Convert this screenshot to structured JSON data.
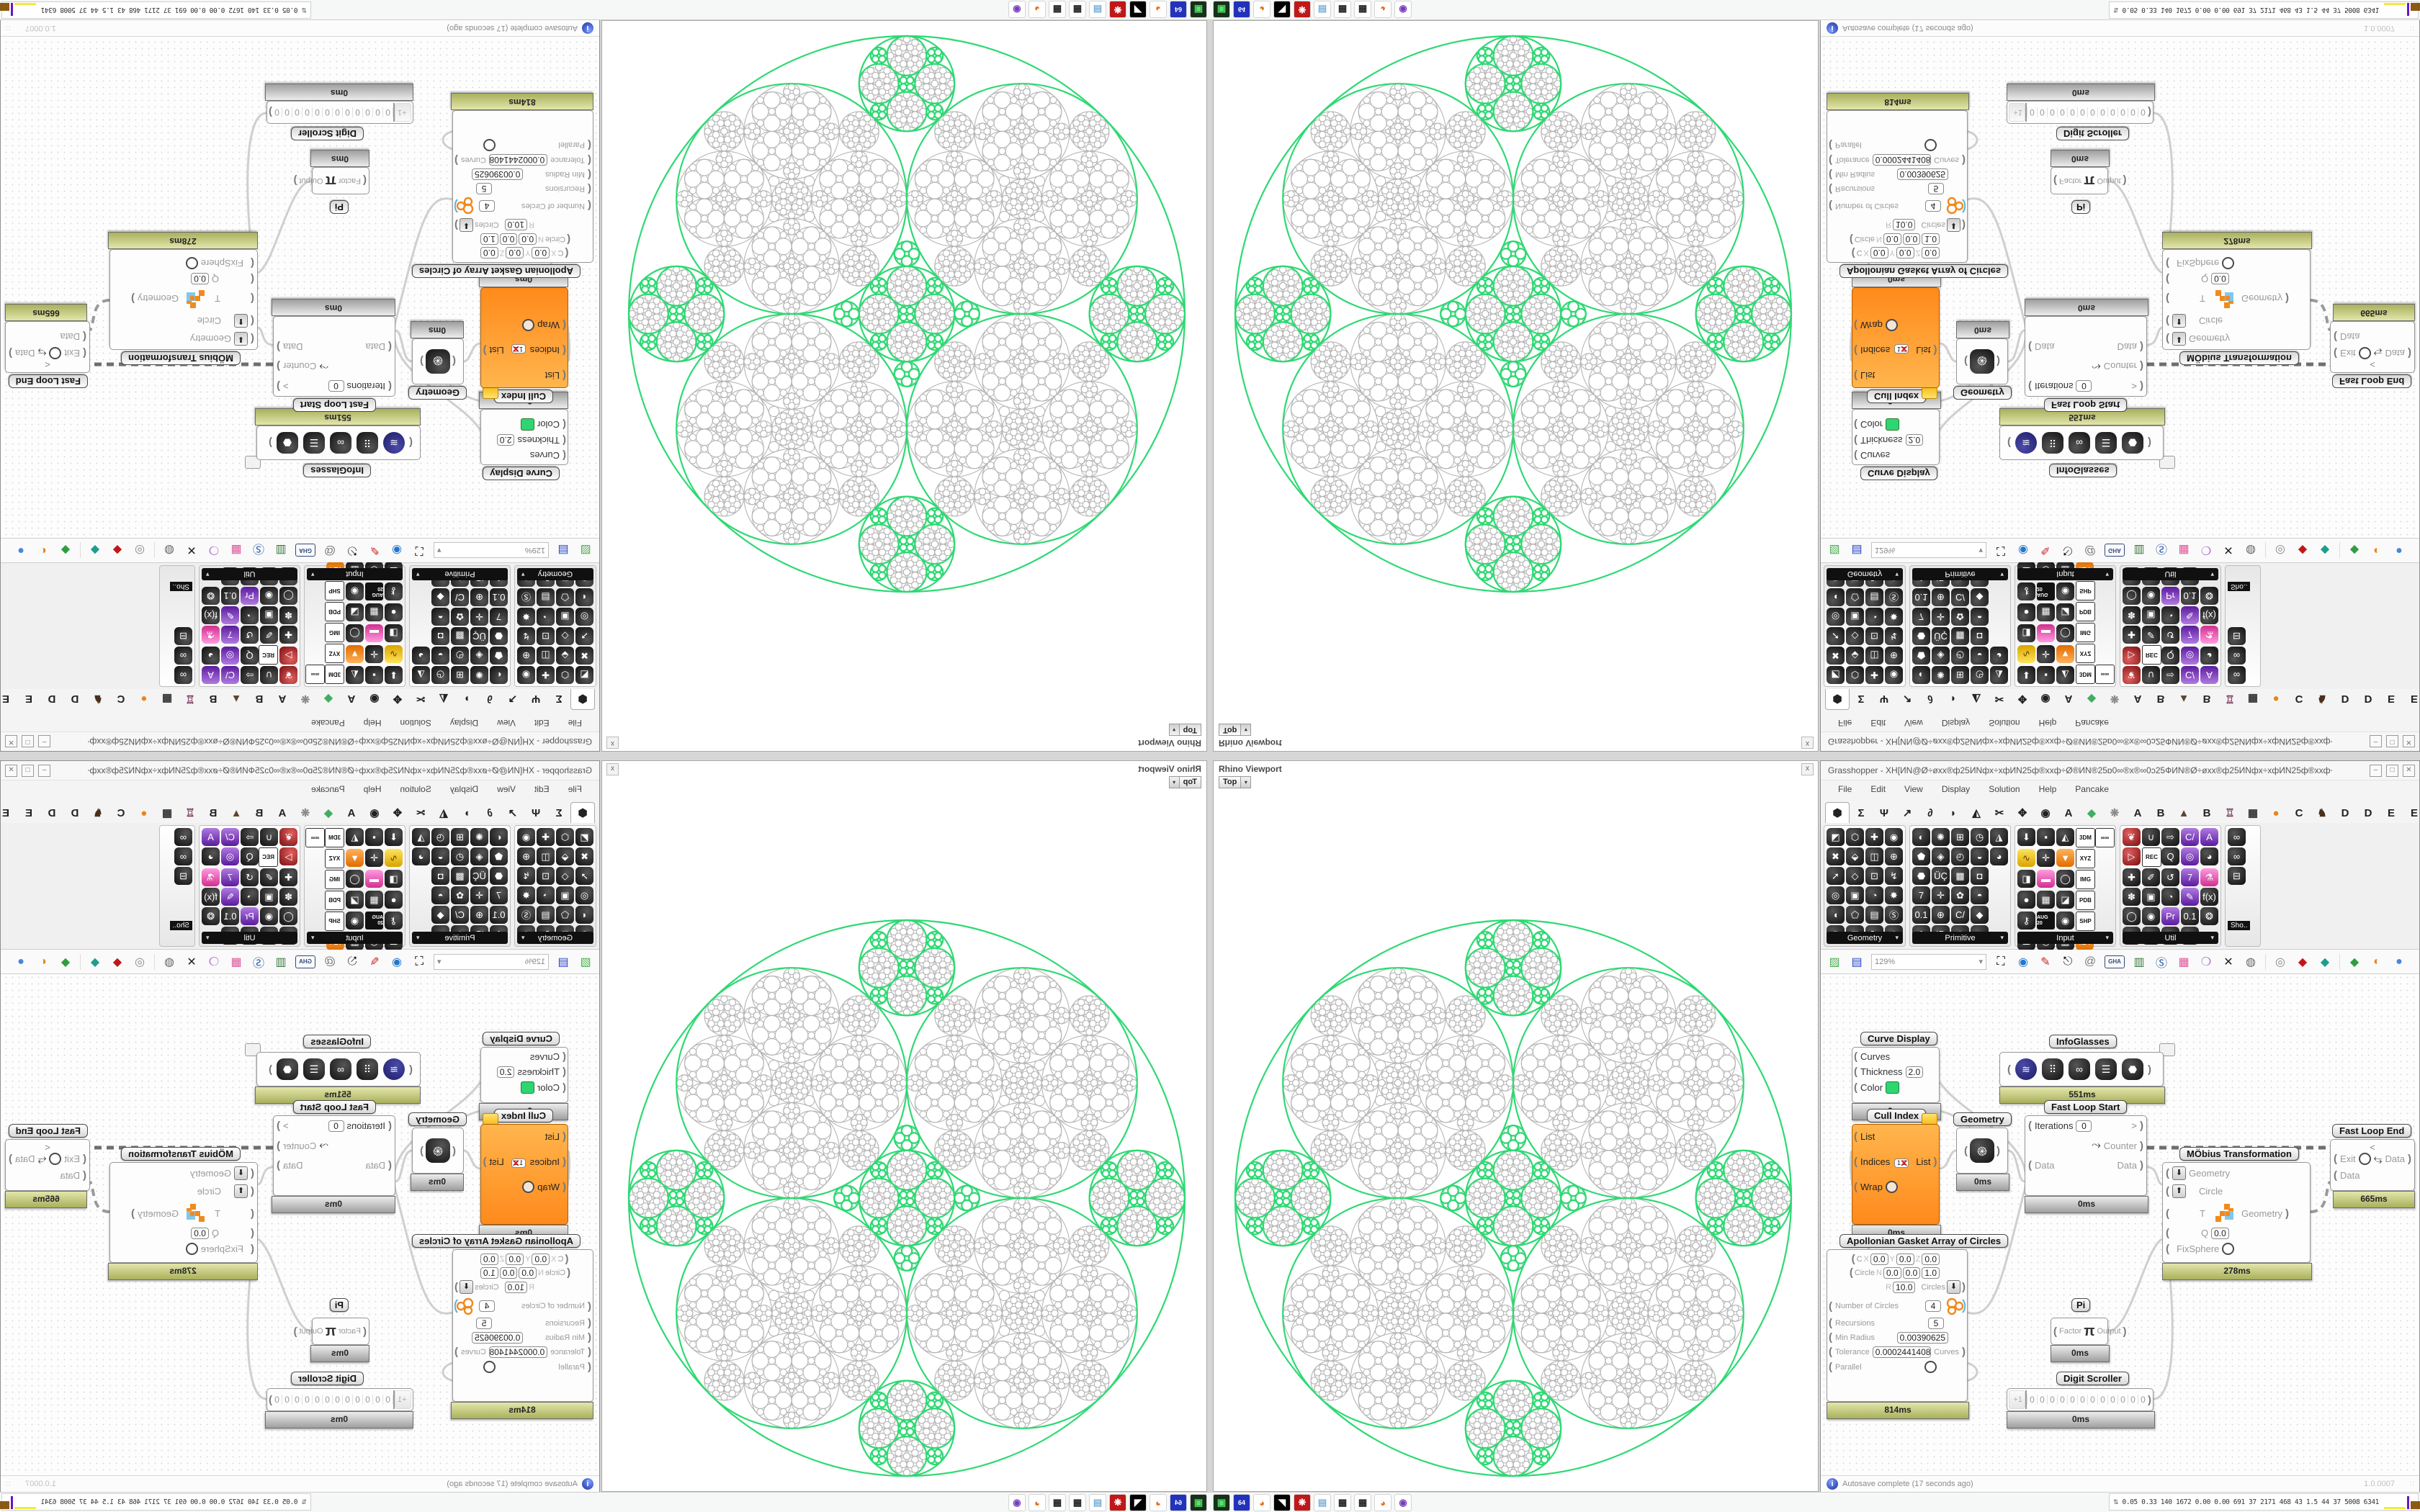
{
  "viewport": {
    "title": "Rhino Viewport",
    "view_label": "Top",
    "dropdown_glyph": "▾",
    "close_label": "x"
  },
  "gasket": {
    "green_color": "#2ed973",
    "gray_color": "#b6b6b6",
    "green_thickness": 2.2,
    "gray_thickness": 1.1,
    "number_of_circles": 4,
    "recursions": 5
  },
  "gh": {
    "window_title": "Grasshopper - XH[ИN@Ø÷øxx®ф25ИNфx÷xфИN25ф®xxф÷Ø®ИN®25ɒ0∞®x®∞0ɔ25ФИN®Ø÷øxx®ф25ИNфx÷xфИN25ф®xxф÷Ø®ИN*",
    "win_min": "–",
    "win_max": "□",
    "win_close": "✕",
    "menu": [
      "File",
      "Edit",
      "View",
      "Display",
      "Solution",
      "Help",
      "Pancake"
    ],
    "tabs_main": [
      {
        "glyph": "⬢",
        "name": "params",
        "selected": true
      },
      {
        "glyph": "Σ",
        "name": "maths"
      },
      {
        "glyph": "Ψ",
        "name": "sets"
      },
      {
        "glyph": "↗",
        "name": "vector"
      },
      {
        "glyph": "∂",
        "name": "curve"
      },
      {
        "glyph": "◗",
        "name": "surface"
      },
      {
        "glyph": "◭",
        "name": "mesh"
      },
      {
        "glyph": "✂",
        "name": "intersect"
      },
      {
        "glyph": "✥",
        "name": "transform"
      },
      {
        "glyph": "◉",
        "name": "display"
      }
    ],
    "tabs_plugins": [
      {
        "glyph": "A",
        "color": "#222"
      },
      {
        "glyph": "◆",
        "color": "#3fae62"
      },
      {
        "glyph": "❋",
        "color": "#8a8a8a"
      },
      {
        "glyph": "A",
        "color": "#222"
      },
      {
        "glyph": "B",
        "color": "#222"
      },
      {
        "glyph": "▲",
        "color": "#5a4632"
      },
      {
        "glyph": "B",
        "color": "#222"
      },
      {
        "glyph": "♖",
        "color": "#7a3b5e"
      },
      {
        "glyph": "▦",
        "color": "#333"
      },
      {
        "glyph": "●",
        "color": "#e8851c"
      },
      {
        "glyph": "C",
        "color": "#222"
      },
      {
        "glyph": "♞",
        "color": "#4a2f1d"
      },
      {
        "glyph": "D",
        "color": "#222"
      },
      {
        "glyph": "D",
        "color": "#222"
      },
      {
        "glyph": "E",
        "color": "#222"
      },
      {
        "glyph": "E",
        "color": "#222"
      },
      {
        "glyph": "▩",
        "color": "#555"
      },
      {
        "glyph": "E",
        "color": "#222"
      }
    ],
    "ribbon_panels": [
      {
        "label": "Geometry",
        "cols": 4,
        "icons": [
          {
            "g": "◩"
          },
          {
            "g": "⬡"
          },
          {
            "g": "✚"
          },
          {
            "g": "◉"
          },
          {
            "g": "✖"
          },
          {
            "g": "⬙"
          },
          {
            "g": "◫"
          },
          {
            "g": "⊕"
          },
          {
            "g": "➚"
          },
          {
            "g": "◇"
          },
          {
            "g": "⊡"
          },
          {
            "g": "↯"
          },
          {
            "g": "◎"
          },
          {
            "g": "▣"
          },
          {
            "g": "◔"
          },
          {
            "g": "✸"
          },
          {
            "g": "◖"
          },
          {
            "g": "⬠"
          },
          {
            "g": "▤"
          },
          {
            "g": "Ⓢ"
          },
          {
            "g": "✹"
          },
          {
            "g": "⊞"
          },
          {
            "g": "↻"
          },
          {
            "g": "◍"
          }
        ]
      },
      {
        "label": "Primitive",
        "cols": 5,
        "icons": [
          {
            "g": "◐"
          },
          {
            "g": "✺"
          },
          {
            "g": "⊞"
          },
          {
            "g": "◷"
          },
          {
            "g": "◮"
          },
          {
            "g": "⬟"
          },
          {
            "g": "◈"
          },
          {
            "g": "◴"
          },
          {
            "g": "◒"
          },
          {
            "g": "◕"
          },
          {
            "g": "⬣"
          },
          {
            "g": "ÜÇ"
          },
          {
            "g": "▩"
          },
          {
            "g": "◘"
          },
          {
            "g": ""
          },
          {
            "g": "7"
          },
          {
            "g": "✛"
          },
          {
            "g": "✿"
          },
          {
            "g": "◓"
          },
          {
            "g": ""
          },
          {
            "g": "0.1"
          },
          {
            "g": "⊕"
          },
          {
            "g": "C/"
          },
          {
            "g": "◆"
          },
          {
            "g": ""
          },
          {
            "g": "A"
          },
          {
            "g": "ID"
          },
          {
            "g": "◍"
          },
          {
            "g": "◖"
          },
          {
            "g": ""
          }
        ]
      },
      {
        "label": "Input",
        "cols": 5,
        "icons": [
          {
            "g": "⬇"
          },
          {
            "g": "▪"
          },
          {
            "g": "◭"
          },
          {
            "t": "3DM"
          },
          {
            "t": "∞∞"
          },
          {
            "g": "∿",
            "k": "yel"
          },
          {
            "g": "✛"
          },
          {
            "g": "▼",
            "k": "orange"
          },
          {
            "t": "XYZ"
          },
          {
            "g": ""
          },
          {
            "g": "◨"
          },
          {
            "g": "▬",
            "k": "pink"
          },
          {
            "g": "◯"
          },
          {
            "t": "IMG"
          },
          {
            "g": ""
          },
          {
            "g": "●"
          },
          {
            "g": "▦"
          },
          {
            "g": "◪"
          },
          {
            "t": "PDB"
          },
          {
            "g": ""
          },
          {
            "g": "⚷"
          },
          {
            "t": "AUG 20",
            "k": "cal"
          },
          {
            "g": "◉"
          },
          {
            "t": "SHP"
          },
          {
            "g": ""
          },
          {
            "g": "☰"
          },
          {
            "g": "◷"
          },
          {
            "g": "▥"
          },
          {
            "t": "ID.",
            "k": "orange"
          },
          {
            "g": ""
          }
        ]
      },
      {
        "label": "Util",
        "cols": 5,
        "icons": [
          {
            "g": "❦",
            "k": "red"
          },
          {
            "g": "∪"
          },
          {
            "g": "⇨"
          },
          {
            "g": "C/",
            "k": "pur"
          },
          {
            "g": "A",
            "k": "pur"
          },
          {
            "g": "▷",
            "k": "red"
          },
          {
            "t": "REC"
          },
          {
            "g": "Q"
          },
          {
            "g": "◎",
            "k": "pur"
          },
          {
            "g": "◕"
          },
          {
            "g": "✚"
          },
          {
            "g": "✐"
          },
          {
            "g": "↺"
          },
          {
            "g": "7",
            "k": "pur"
          },
          {
            "g": "⚗",
            "k": "pink"
          },
          {
            "g": "✽"
          },
          {
            "g": "▣"
          },
          {
            "g": "◔"
          },
          {
            "g": "✎",
            "k": "pur"
          },
          {
            "g": "f(x)"
          },
          {
            "g": "◯"
          },
          {
            "g": "◉"
          },
          {
            "g": "Pr",
            "k": "pur"
          },
          {
            "g": "0.1"
          },
          {
            "g": "❂"
          },
          {
            "g": "ABC"
          },
          {
            "g": "➡"
          },
          {
            "g": "◆"
          },
          {
            "g": "✖"
          },
          {
            "g": ""
          }
        ]
      }
    ],
    "show_panel": {
      "icons": [
        {
          "g": "∞"
        },
        {
          "g": "∞"
        },
        {
          "g": "⊟"
        }
      ],
      "tag": "Sho.."
    },
    "toolbar": {
      "zoom_value": "129%",
      "zoom_chev": "▾",
      "icons": [
        {
          "name": "open-icon",
          "glyph": "▨",
          "color": "#4caf50"
        },
        {
          "name": "save-icon",
          "glyph": "▤",
          "color": "#2244cc"
        },
        {
          "name": "zoom-extents-icon",
          "glyph": "⛶",
          "color": "#111"
        },
        {
          "name": "preview-eye-icon",
          "glyph": "◉",
          "color": "#2277cc"
        },
        {
          "name": "sketch-quill-icon",
          "glyph": "✎",
          "color": "#cc2222"
        },
        {
          "name": "bake-door-icon",
          "glyph": "⎋",
          "color": "#111"
        },
        {
          "name": "at-icon",
          "glyph": "@",
          "color": "#777"
        },
        {
          "name": "gha-icon",
          "glyph": "GHA",
          "color": "#334a7a",
          "chip": true
        },
        {
          "name": "window-chart-icon",
          "glyph": "▥",
          "color": "#3a7a3a"
        },
        {
          "name": "s-circle-icon",
          "glyph": "Ⓢ",
          "color": "#2255aa"
        },
        {
          "name": "bag-icon",
          "glyph": "▦",
          "color": "#e0559a"
        },
        {
          "name": "balloon-icon",
          "glyph": "❍",
          "color": "#b06ad0"
        },
        {
          "name": "cross-arrows-icon",
          "glyph": "✕",
          "color": "#222"
        },
        {
          "name": "sphere-ring-icon",
          "glyph": "◍",
          "color": "#666"
        },
        {
          "name": "torus-icon",
          "glyph": "◎",
          "color": "#888"
        },
        {
          "name": "ruby-gem-icon",
          "glyph": "◆",
          "color": "#c01818"
        },
        {
          "name": "teal-gem-icon",
          "glyph": "◆",
          "color": "#1d9e8f"
        },
        {
          "name": "green-gem-icon",
          "glyph": "◆",
          "color": "#2f9e3f"
        },
        {
          "name": "orange-half-icon",
          "glyph": "◐",
          "color": "#e8882a"
        },
        {
          "name": "blue-sphere-icon",
          "glyph": "●",
          "color": "#4a86d8"
        }
      ]
    },
    "status": {
      "left": "Autosave complete (17 seconds ago)",
      "right": "1.0.0007",
      "grip": "∷",
      "info_glyph": "i"
    }
  },
  "nodes": {
    "curve_display": {
      "label": "Curve Display",
      "in1": "Curves",
      "in2": "Thickness",
      "thickness": "2.0",
      "in3": "Color",
      "time": "2ms"
    },
    "info_glasses": {
      "label": "InfoGlasses",
      "time": "551ms",
      "icons": [
        {
          "name": "infoglasses-list-icon",
          "glyph": "≋",
          "oval": true
        },
        {
          "name": "infoglasses-grid-icon",
          "glyph": "⠿"
        },
        {
          "name": "infoglasses-goggles-icon",
          "glyph": "∞"
        },
        {
          "name": "infoglasses-drawer-icon",
          "glyph": "☰"
        },
        {
          "name": "infoglasses-puzzle-icon",
          "glyph": "⬣"
        }
      ]
    },
    "cull_index": {
      "label": "Cull Index",
      "in1": "List",
      "in2": "Indices",
      "in3": "Wrap",
      "out1": "List",
      "time": "0ms",
      "icon_num": "1 2",
      "icon_x": "✕"
    },
    "geometry_node": {
      "label": "Geometry",
      "glyph": "֎",
      "time": "0ms"
    },
    "fast_loop_start": {
      "label": "Fast Loop Start",
      "in1": "Iterations",
      "iterations": "0",
      "in2": "Data",
      "out_top": ">",
      "out1": "Counter",
      "out2": "Data",
      "counter_glyph": "⤳",
      "time": "0ms"
    },
    "mobius": {
      "label": "MÖbius Transformation",
      "in1": "Geometry",
      "in2": "Circle",
      "in3": "T",
      "in4": "Q",
      "q": "0.0",
      "in5": "FixSphere",
      "out1": "Geometry",
      "time": "278ms"
    },
    "fast_loop_end": {
      "label": "Fast Loop End",
      "in_top": "<",
      "in1": "Exit",
      "exit_glyph": "⥃",
      "in2": "Data",
      "out1": "Data",
      "time": "665ms"
    },
    "pi": {
      "label": "Pi",
      "in1": "Factor",
      "symbol": "π",
      "out1": "Output",
      "time": "0ms"
    },
    "apollonian": {
      "label": "Apollonian Gasket Array of Circles",
      "time": "814ms",
      "c_label": "C",
      "x_label": "X",
      "y_label": "Y",
      "z_label": "Z",
      "c_x": "0.0",
      "c_y": "0.0",
      "c_z": "0.0",
      "circle_label": "Circle",
      "n_label": "N",
      "n_x": "0.0",
      "n_y": "0.0",
      "n_z": "1.0",
      "r_label": "R",
      "r_val": "10.0",
      "noc_label": "Number of Circles",
      "noc": "4",
      "rec_label": "Recursions",
      "rec": "5",
      "minr_label": "Min Radius",
      "minr": "0.00390625",
      "tol_label": "Tolerance",
      "tol": "0.0002441408",
      "par_label": "Parallel",
      "out1": "Circles",
      "out2": "Curves"
    },
    "digit_scroller": {
      "label": "Digit Scroller",
      "plus": "+1",
      "digits": [
        "0",
        "0",
        "0",
        "0",
        "0",
        "0",
        "0",
        "0",
        "0",
        "0",
        "0",
        "0"
      ],
      "time": "0ms"
    }
  },
  "taskbar": {
    "icons": [
      {
        "name": "capture-app-icon",
        "glyph": "▣",
        "bg": "#16301a",
        "fg": "#57e06a"
      },
      {
        "name": "floppy64-app-icon",
        "glyph": "64",
        "bg": "#2233bb",
        "fg": "#ffffff"
      },
      {
        "name": "firefox-icon",
        "glyph": "◕",
        "bg": "#ffffff",
        "fg": "#e8701a"
      },
      {
        "name": "rhino-icon",
        "glyph": "◥",
        "bg": "#000000",
        "fg": "#ffffff"
      },
      {
        "name": "red-badge-icon",
        "glyph": "❋",
        "bg": "#c01818",
        "fg": "#ffffff"
      },
      {
        "name": "notepad-icon",
        "glyph": "▤",
        "bg": "#ffffff",
        "fg": "#7ab0d8"
      },
      {
        "name": "qr-app-icon",
        "glyph": "▦",
        "bg": "#ffffff",
        "fg": "#222222"
      },
      {
        "name": "qr-app-icon-2",
        "glyph": "▦",
        "bg": "#ffffff",
        "fg": "#222222"
      },
      {
        "name": "firefox-icon-2",
        "glyph": "◕",
        "bg": "#ffffff",
        "fg": "#e8701a"
      },
      {
        "name": "owl-app-icon",
        "glyph": "◉",
        "bg": "#ffffff",
        "fg": "#7a3bbf"
      }
    ],
    "perf_arrows": "⇅",
    "perf_numbers": "0.05 0.33  140 1672 0.00 0.00  691   37  2171 468   43   1.5   44   37  5008 6341",
    "hist": [
      {
        "name": "hist-yellow-line",
        "color": "#f2ea3a",
        "w": 30,
        "h": 3
      },
      {
        "name": "hist-purple-spike",
        "color": "#6a14c8",
        "w": 3,
        "h": 18
      },
      {
        "name": "hist-brown-bar",
        "color": "#8a5a14",
        "w": 16,
        "h": 11
      },
      {
        "name": "hist-blue-bar",
        "color": "#1d4e9c",
        "w": 20,
        "h": 15
      },
      {
        "name": "hist-brown-bar-2",
        "color": "#8a5a14",
        "w": 13,
        "h": 9
      },
      {
        "name": "hist-green-line",
        "color": "#3cb54a",
        "w": 24,
        "h": 3
      },
      {
        "name": "hist-darkred-bar",
        "color": "#8a1a1a",
        "w": 13,
        "h": 8
      }
    ]
  }
}
